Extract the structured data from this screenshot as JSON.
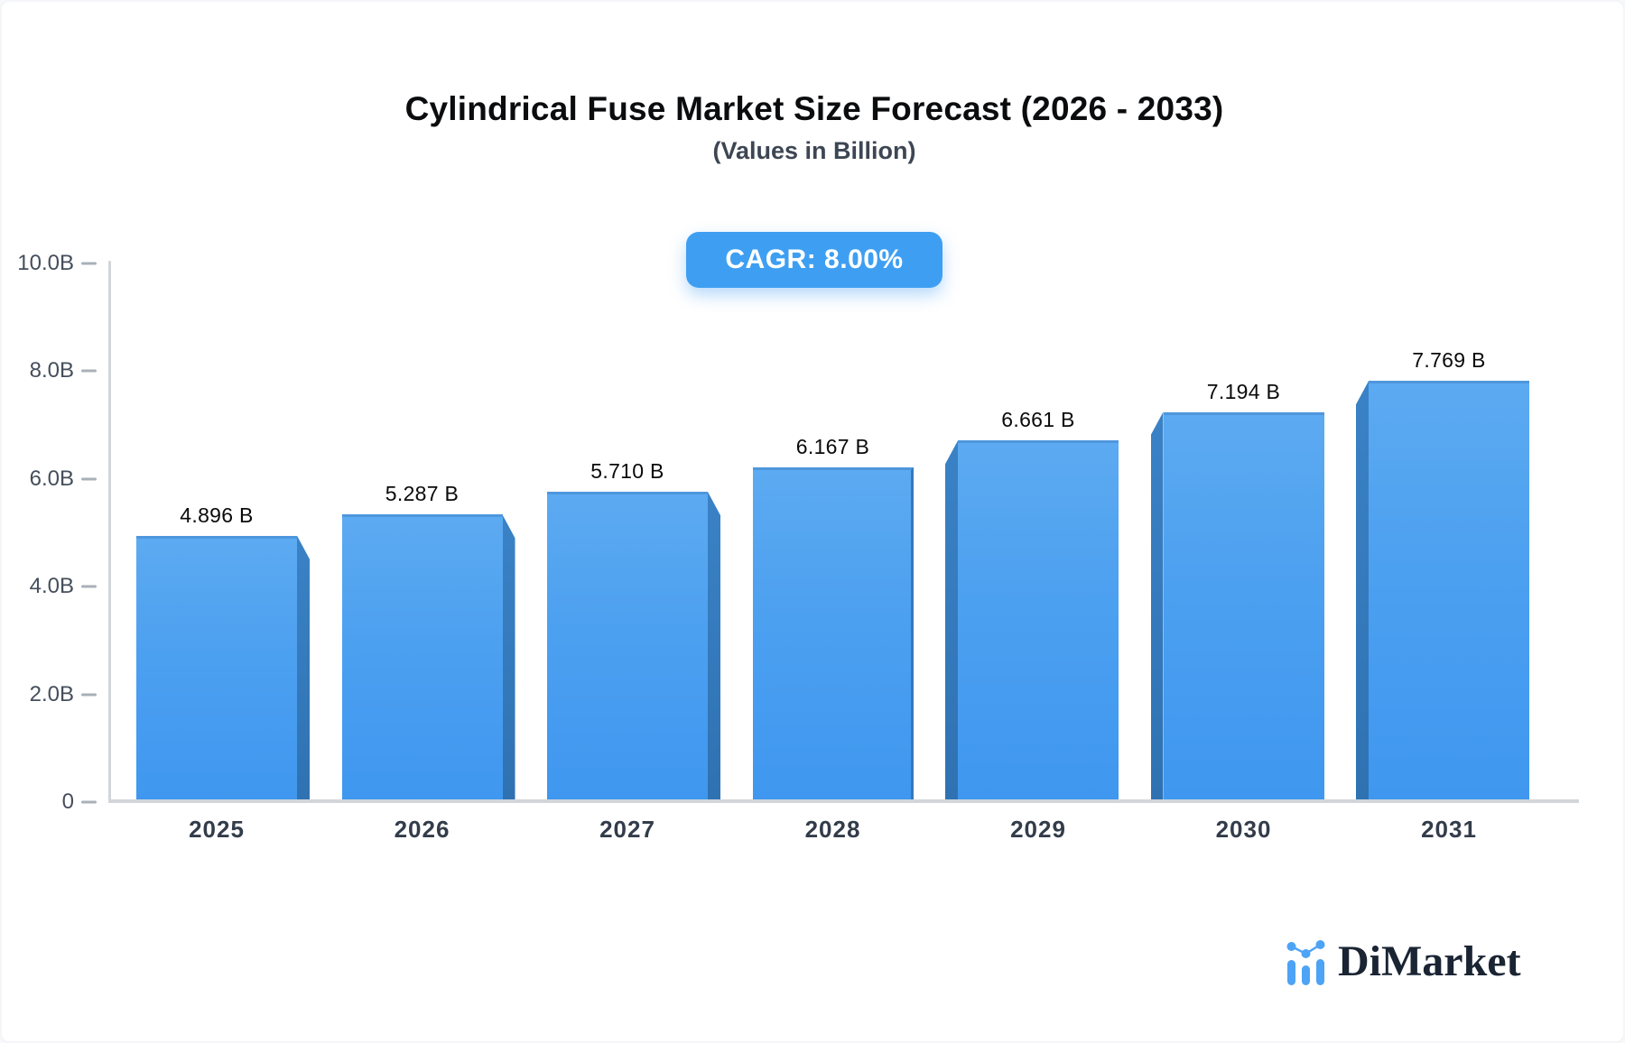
{
  "page": {
    "title": "Cylindrical Fuse Market Size Forecast (2026 - 2033)",
    "subtitle": "(Values in Billion)",
    "cagr_label": "CAGR: 8.00%",
    "brand_name": "DiMarket"
  },
  "colors": {
    "bar_face_top": "#5CAAF1",
    "bar_face_bottom": "#3F97EF",
    "bar_side": "#3278BA",
    "bar_top_edge": "#4E97DD",
    "badge_bg": "#3E9FF2",
    "axis_gray": "#D2D5D9",
    "y_tick_label": "#454E5C",
    "x_tick_label": "#333C4A",
    "value_label": "#0A0A0A",
    "brand_text": "#1A2433",
    "brand_icon_blue": "#4DA3F5"
  },
  "chart_data": {
    "type": "bar",
    "title": "Cylindrical Fuse Market Size Forecast (2026 - 2033)",
    "subtitle": "(Values in Billion)",
    "cagr": "8.00%",
    "unit": "Billion",
    "categories": [
      "2025",
      "2026",
      "2027",
      "2028",
      "2029",
      "2030",
      "2031"
    ],
    "values": [
      4.896,
      5.287,
      5.71,
      6.167,
      6.661,
      7.194,
      7.769
    ],
    "bar_labels": [
      "4.896 B",
      "5.287 B",
      "5.710 B",
      "6.167 B",
      "6.661 B",
      "7.194 B",
      "7.769 B"
    ],
    "ylim": [
      0,
      10
    ],
    "y_ticks": [
      {
        "label": "10.0B",
        "value": 10
      },
      {
        "label": "8.0B",
        "value": 8
      },
      {
        "label": "6.0B",
        "value": 6
      },
      {
        "label": "4.0B",
        "value": 4
      },
      {
        "label": "2.0B",
        "value": 2
      },
      {
        "label": "0",
        "value": 0
      }
    ],
    "grid": false,
    "legend_position": "none",
    "bar_style": "3d-extruded, center perspective (side face toward chart center)"
  }
}
